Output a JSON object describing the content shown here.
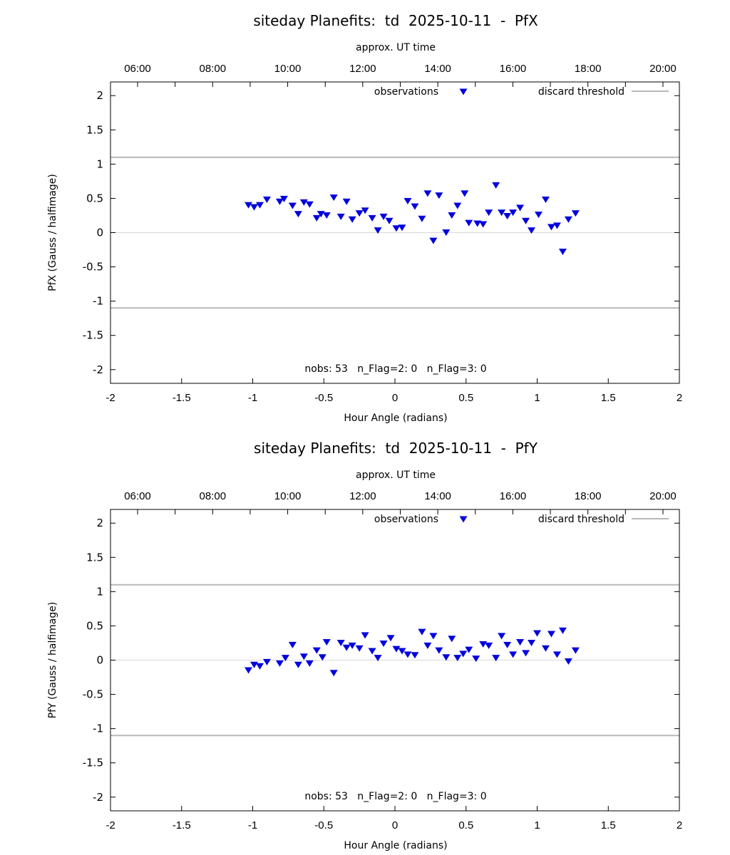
{
  "colors": {
    "observation_marker": "#0000dd",
    "discard_threshold_line": "#b8b8b8",
    "zero_line": "#d8d8d8",
    "border": "#000000",
    "text": "#000000",
    "background": "#ffffff"
  },
  "chart_data": [
    {
      "type": "scatter",
      "title": "siteday Planefits:  td  2025-10-11  -  PfX",
      "top_axis_title": "approx. UT time",
      "top_axis_tick_labels": [
        "06:00",
        "08:00",
        "10:00",
        "12:00",
        "14:00",
        "16:00",
        "18:00",
        "20:00"
      ],
      "top_axis_label_hours": [
        6,
        8,
        10,
        12,
        14,
        16,
        18,
        20
      ],
      "top_axis_minor_hours": [
        6,
        7,
        8,
        9,
        10,
        11,
        12,
        13,
        14,
        15,
        16,
        17,
        18,
        19,
        20
      ],
      "xlabel": "Hour Angle (radians)",
      "ylabel": "PfX (Gauss / halfimage)",
      "x_ticks": [
        -2,
        -1.5,
        -1,
        -0.5,
        0,
        0.5,
        1,
        1.5,
        2
      ],
      "x_tick_labels": [
        "-2",
        "-1.5",
        "-1",
        "-0.5",
        "0",
        "0.5",
        "1",
        "1.5",
        "2"
      ],
      "y_ticks": [
        -2,
        -1.5,
        -1,
        -0.5,
        0,
        0.5,
        1,
        1.5,
        2
      ],
      "y_tick_labels": [
        "-2",
        "-1.5",
        "-1",
        "-0.5",
        "0",
        "0.5",
        "1",
        "1.5",
        "2"
      ],
      "xlim": [
        -2,
        2
      ],
      "ylim": [
        -2.2,
        2.2
      ],
      "grid": false,
      "legend_position": "top-right-inside",
      "legend": [
        {
          "label": "observations",
          "type": "point"
        },
        {
          "label": "discard threshold",
          "type": "line"
        }
      ],
      "discard_threshold": 1.1,
      "zero_line": 0,
      "stats_text": "nobs: 53   n_Flag=2: 0   n_Flag=3: 0",
      "nobs": 53,
      "n_flag_2": 0,
      "n_flag_3": 0,
      "points": [
        [
          -1.03,
          0.41
        ],
        [
          -0.99,
          0.38
        ],
        [
          -0.95,
          0.41
        ],
        [
          -0.9,
          0.49
        ],
        [
          -0.81,
          0.46
        ],
        [
          -0.78,
          0.5
        ],
        [
          -0.72,
          0.4
        ],
        [
          -0.68,
          0.28
        ],
        [
          -0.64,
          0.45
        ],
        [
          -0.6,
          0.42
        ],
        [
          -0.55,
          0.22
        ],
        [
          -0.52,
          0.28
        ],
        [
          -0.48,
          0.26
        ],
        [
          -0.43,
          0.52
        ],
        [
          -0.38,
          0.24
        ],
        [
          -0.34,
          0.46
        ],
        [
          -0.3,
          0.2
        ],
        [
          -0.25,
          0.29
        ],
        [
          -0.21,
          0.33
        ],
        [
          -0.16,
          0.22
        ],
        [
          -0.12,
          0.04
        ],
        [
          -0.08,
          0.24
        ],
        [
          -0.04,
          0.18
        ],
        [
          0.01,
          0.07
        ],
        [
          0.05,
          0.08
        ],
        [
          0.09,
          0.47
        ],
        [
          0.14,
          0.39
        ],
        [
          0.19,
          0.21
        ],
        [
          0.23,
          0.58
        ],
        [
          0.27,
          -0.11
        ],
        [
          0.31,
          0.55
        ],
        [
          0.36,
          0.01
        ],
        [
          0.4,
          0.26
        ],
        [
          0.44,
          0.4
        ],
        [
          0.49,
          0.58
        ],
        [
          0.52,
          0.15
        ],
        [
          0.58,
          0.14
        ],
        [
          0.62,
          0.13
        ],
        [
          0.66,
          0.3
        ],
        [
          0.71,
          0.7
        ],
        [
          0.75,
          0.3
        ],
        [
          0.79,
          0.25
        ],
        [
          0.83,
          0.3
        ],
        [
          0.88,
          0.37
        ],
        [
          0.92,
          0.18
        ],
        [
          0.96,
          0.04
        ],
        [
          1.01,
          0.27
        ],
        [
          1.06,
          0.49
        ],
        [
          1.1,
          0.09
        ],
        [
          1.14,
          0.11
        ],
        [
          1.18,
          -0.27
        ],
        [
          1.22,
          0.2
        ],
        [
          1.27,
          0.29
        ]
      ]
    },
    {
      "type": "scatter",
      "title": "siteday Planefits:  td  2025-10-11  -  PfY",
      "top_axis_title": "approx. UT time",
      "top_axis_tick_labels": [
        "06:00",
        "08:00",
        "10:00",
        "12:00",
        "14:00",
        "16:00",
        "18:00",
        "20:00"
      ],
      "top_axis_label_hours": [
        6,
        8,
        10,
        12,
        14,
        16,
        18,
        20
      ],
      "top_axis_minor_hours": [
        6,
        7,
        8,
        9,
        10,
        11,
        12,
        13,
        14,
        15,
        16,
        17,
        18,
        19,
        20
      ],
      "xlabel": "Hour Angle (radians)",
      "ylabel": "PfY (Gauss / halfimage)",
      "x_ticks": [
        -2,
        -1.5,
        -1,
        -0.5,
        0,
        0.5,
        1,
        1.5,
        2
      ],
      "x_tick_labels": [
        "-2",
        "-1.5",
        "-1",
        "-0.5",
        "0",
        "0.5",
        "1",
        "1.5",
        "2"
      ],
      "y_ticks": [
        -2,
        -1.5,
        -1,
        -0.5,
        0,
        0.5,
        1,
        1.5,
        2
      ],
      "y_tick_labels": [
        "-2",
        "-1.5",
        "-1",
        "-0.5",
        "0",
        "0.5",
        "1",
        "1.5",
        "2"
      ],
      "xlim": [
        -2,
        2
      ],
      "ylim": [
        -2.2,
        2.2
      ],
      "grid": false,
      "legend_position": "top-right-inside",
      "legend": [
        {
          "label": "observations",
          "type": "point"
        },
        {
          "label": "discard threshold",
          "type": "line"
        }
      ],
      "discard_threshold": 1.1,
      "zero_line": 0,
      "stats_text": "nobs: 53   n_Flag=2: 0   n_Flag=3: 0",
      "nobs": 53,
      "n_flag_2": 0,
      "n_flag_3": 0,
      "points": [
        [
          -1.03,
          -0.14
        ],
        [
          -0.99,
          -0.06
        ],
        [
          -0.95,
          -0.08
        ],
        [
          -0.9,
          -0.02
        ],
        [
          -0.81,
          -0.04
        ],
        [
          -0.77,
          0.04
        ],
        [
          -0.72,
          0.23
        ],
        [
          -0.68,
          -0.06
        ],
        [
          -0.64,
          0.06
        ],
        [
          -0.6,
          -0.04
        ],
        [
          -0.55,
          0.15
        ],
        [
          -0.51,
          0.05
        ],
        [
          -0.48,
          0.27
        ],
        [
          -0.43,
          -0.18
        ],
        [
          -0.38,
          0.26
        ],
        [
          -0.34,
          0.19
        ],
        [
          -0.3,
          0.22
        ],
        [
          -0.25,
          0.18
        ],
        [
          -0.21,
          0.37
        ],
        [
          -0.16,
          0.14
        ],
        [
          -0.12,
          0.04
        ],
        [
          -0.08,
          0.25
        ],
        [
          -0.03,
          0.33
        ],
        [
          0.01,
          0.17
        ],
        [
          0.05,
          0.14
        ],
        [
          0.09,
          0.09
        ],
        [
          0.14,
          0.08
        ],
        [
          0.19,
          0.42
        ],
        [
          0.23,
          0.22
        ],
        [
          0.27,
          0.36
        ],
        [
          0.31,
          0.15
        ],
        [
          0.36,
          0.05
        ],
        [
          0.4,
          0.32
        ],
        [
          0.44,
          0.04
        ],
        [
          0.48,
          0.1
        ],
        [
          0.52,
          0.16
        ],
        [
          0.57,
          0.03
        ],
        [
          0.62,
          0.24
        ],
        [
          0.66,
          0.22
        ],
        [
          0.71,
          0.04
        ],
        [
          0.75,
          0.36
        ],
        [
          0.79,
          0.23
        ],
        [
          0.83,
          0.09
        ],
        [
          0.88,
          0.27
        ],
        [
          0.92,
          0.11
        ],
        [
          0.96,
          0.26
        ],
        [
          1.0,
          0.4
        ],
        [
          1.06,
          0.18
        ],
        [
          1.1,
          0.39
        ],
        [
          1.14,
          0.09
        ],
        [
          1.18,
          0.44
        ],
        [
          1.22,
          -0.01
        ],
        [
          1.27,
          0.15
        ]
      ]
    }
  ]
}
